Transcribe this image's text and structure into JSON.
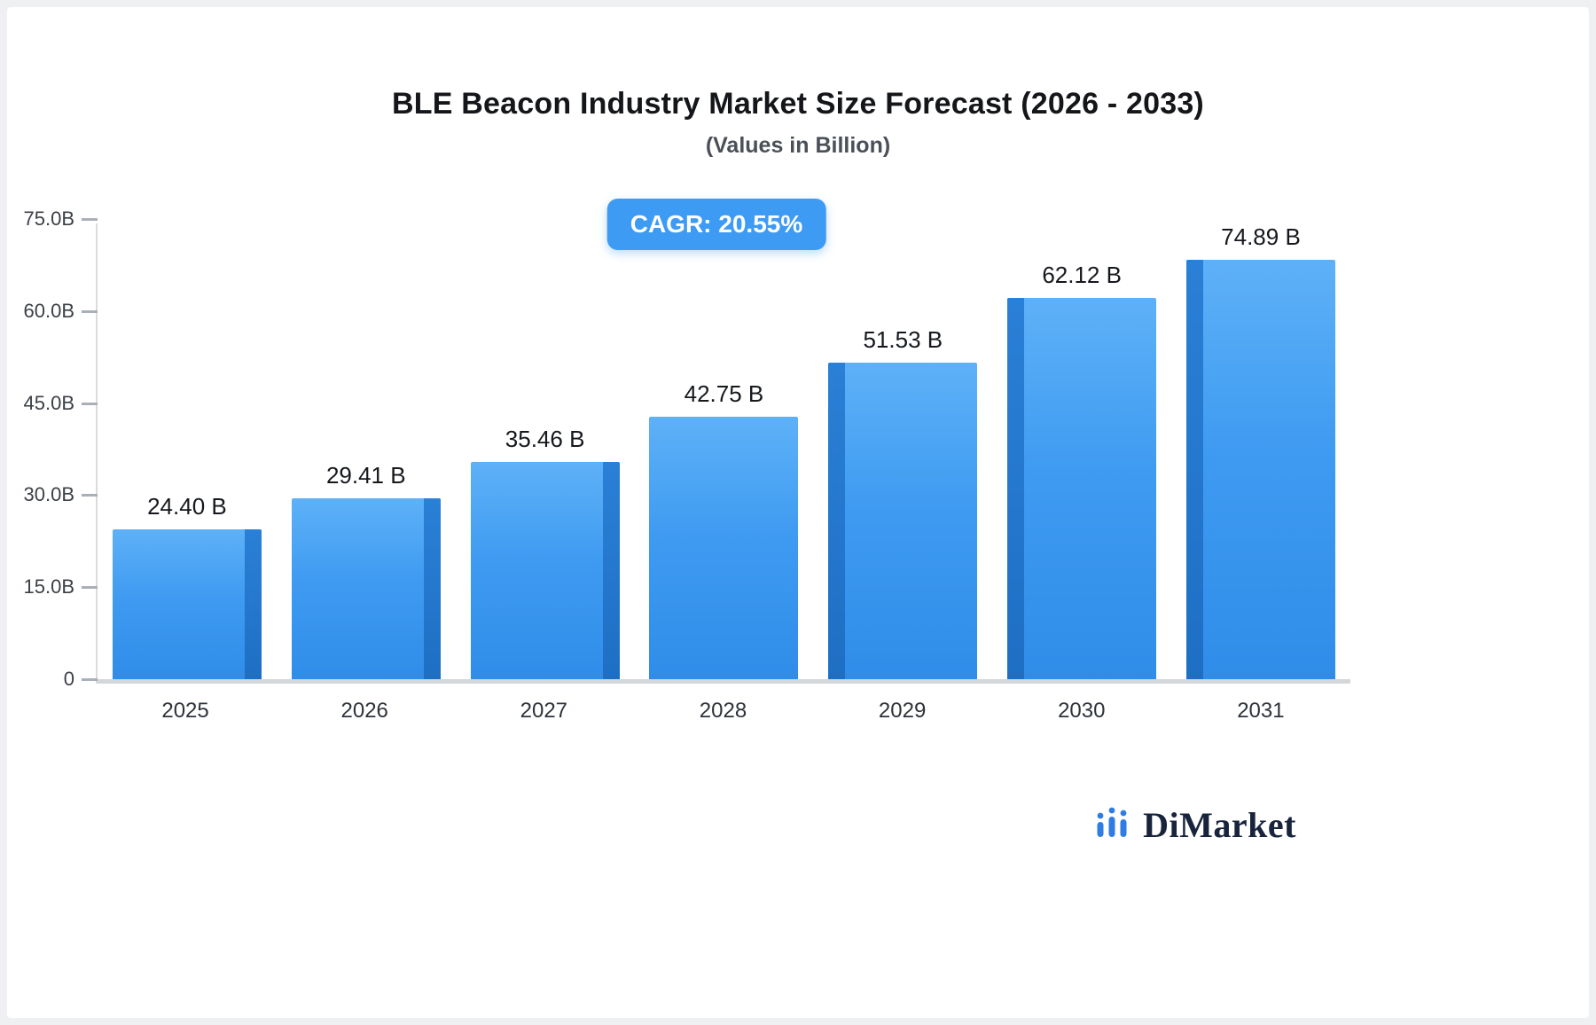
{
  "header": {
    "title": "BLE Beacon Industry Market Size Forecast (2026 - 2033)",
    "subtitle": "(Values in Billion)"
  },
  "badge": {
    "label": "CAGR: 20.55%",
    "bg_color": "#3e9bf4",
    "text_color": "#ffffff"
  },
  "logo": {
    "text": "DiMarket",
    "icon": "bar-chart-icon",
    "icon_color": "#2e7ce4",
    "text_color": "#17243c"
  },
  "chart_data": {
    "type": "bar",
    "title": "BLE Beacon Industry Market Size Forecast (2026 - 2033)",
    "subtitle": "(Values in Billion)",
    "categories": [
      "2025",
      "2026",
      "2027",
      "2028",
      "2029",
      "2030",
      "2031"
    ],
    "values": [
      24.4,
      29.41,
      35.46,
      42.75,
      51.53,
      62.12,
      74.89
    ],
    "value_labels": [
      "24.40 B",
      "29.41 B",
      "35.46 B",
      "42.75 B",
      "51.53 B",
      "62.12 B",
      "74.89 B"
    ],
    "xlabel": "",
    "ylabel": "",
    "ylim": [
      0,
      75
    ],
    "yticks": [
      {
        "label": "0",
        "value": 0
      },
      {
        "label": "15.0B",
        "value": 15
      },
      {
        "label": "30.0B",
        "value": 30
      },
      {
        "label": "45.0B",
        "value": 45
      },
      {
        "label": "60.0B",
        "value": 60
      },
      {
        "label": "75.0B",
        "value": 75
      }
    ],
    "grid": false,
    "legend": false,
    "bar_color_top": "#5eb1f7",
    "bar_color_bottom": "#2f8de9",
    "bar_side_color": "#1e6fc4",
    "annotation": "CAGR: 20.55%"
  }
}
